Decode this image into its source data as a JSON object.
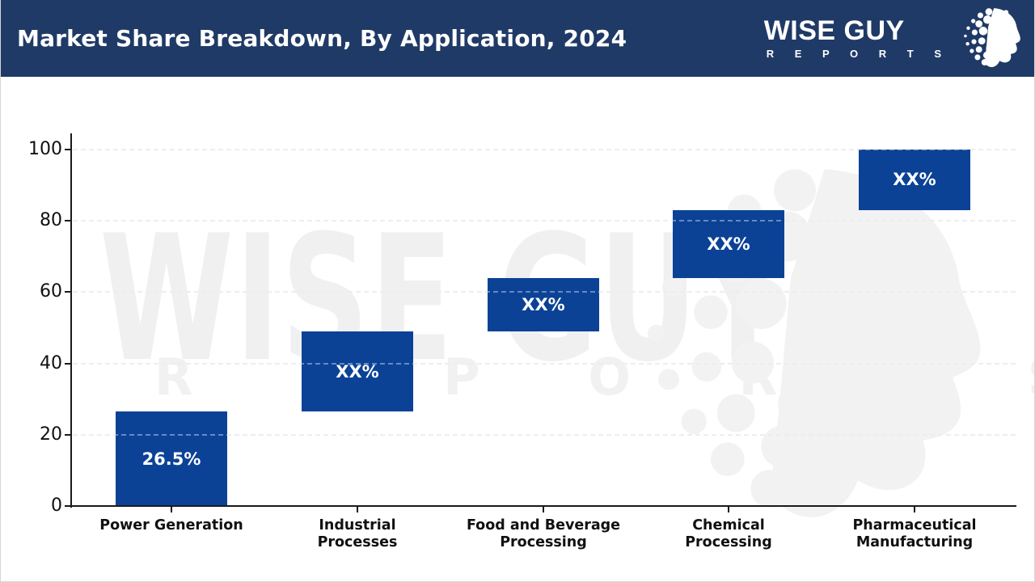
{
  "header": {
    "title": "Market Share Breakdown, By Application, 2024",
    "background_color": "#1f3a66",
    "logo": {
      "line1": "WISE GUY",
      "line2": "R E P O R T S"
    }
  },
  "chart_data": {
    "type": "bar",
    "subtype": "waterfall",
    "title": "Market Share Breakdown, By Application, 2024",
    "categories": [
      "Power Generation",
      "Industrial\nProcesses",
      "Food and Beverage\nProcessing",
      "Chemical\nProcessing",
      "Pharmaceutical\nManufacturing"
    ],
    "segments": [
      {
        "category": "Power Generation",
        "label": "26.5%",
        "start": 0,
        "end": 26.5
      },
      {
        "category": "Industrial Processes",
        "label": "XX%",
        "start": 26.5,
        "end": 49
      },
      {
        "category": "Food and Beverage Processing",
        "label": "XX%",
        "start": 49,
        "end": 64
      },
      {
        "category": "Chemical Processing",
        "label": "XX%",
        "start": 64,
        "end": 83
      },
      {
        "category": "Pharmaceutical Manufacturing",
        "label": "XX%",
        "start": 83,
        "end": 100
      }
    ],
    "ylim": [
      0,
      100
    ],
    "yticks": [
      0,
      20,
      40,
      60,
      80,
      100
    ],
    "grid": true,
    "legend": null,
    "bar_color": "#0b4296",
    "bar_label_color": "#ffffff",
    "watermark": {
      "line1": "WISE GUY",
      "line2": "R E P O R T S"
    }
  }
}
